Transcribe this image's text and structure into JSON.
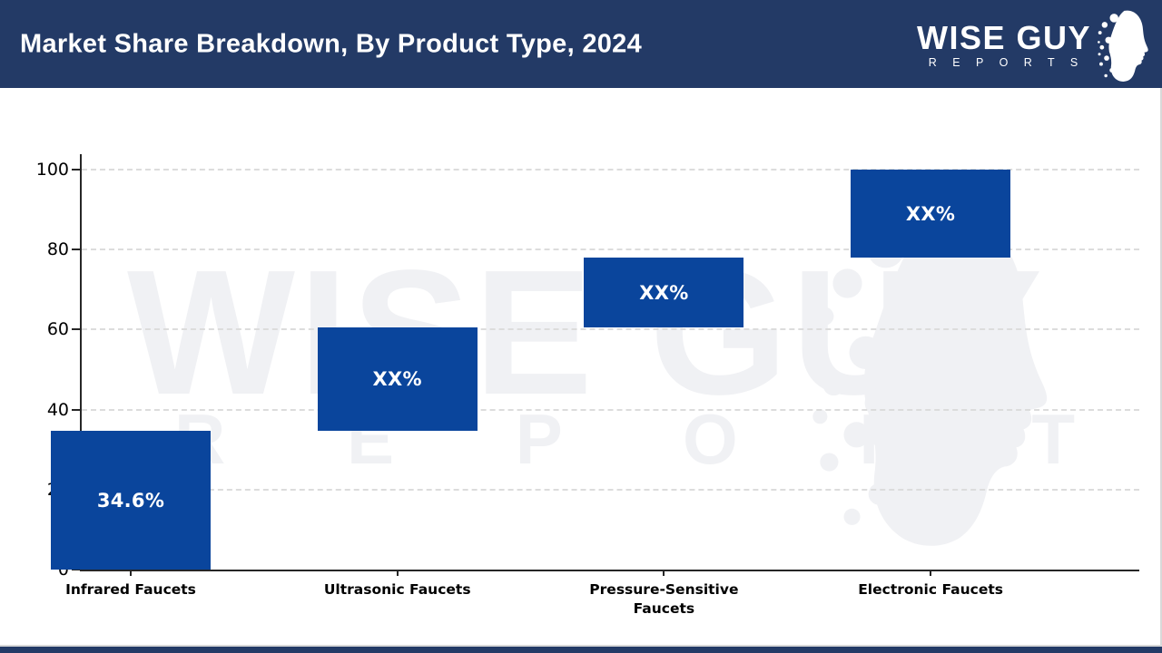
{
  "colors": {
    "header_bg": "#233a66",
    "footer_bg": "#233a66",
    "bar_blue": "#0a459c",
    "watermark_gray": "#f0f1f4",
    "gridline_gray": "#dcdcdc",
    "axis_black": "#262626"
  },
  "header": {
    "title": "Market Share Breakdown, By Product Type, 2024",
    "brand": {
      "line1": "WISE GUY",
      "line2": "R E P O R T S"
    }
  },
  "watermark": {
    "line1": "WISE GUY",
    "line2": "R E P O R T S"
  },
  "chart_data": {
    "type": "bar",
    "subtype": "waterfall-stacked",
    "title": "Market Share Breakdown, By Product Type, 2024",
    "xlabel": "",
    "ylabel": "",
    "grid": "horizontal-dashed",
    "legend": "none",
    "ylim": [
      0,
      100
    ],
    "yticks": [
      0,
      20,
      40,
      60,
      80,
      100
    ],
    "categories": [
      "Infrared Faucets",
      "Ultrasonic Faucets",
      "Pressure-Sensitive Faucets",
      "Electronic Faucets"
    ],
    "series": [
      {
        "name": "Infrared Faucets",
        "start": 0,
        "end": 34.6,
        "value": 34.6,
        "label": "34.6%"
      },
      {
        "name": "Ultrasonic Faucets",
        "start": 34.6,
        "end": 60.5,
        "value": 25.9,
        "label": "XX%"
      },
      {
        "name": "Pressure-Sensitive Faucets",
        "start": 60.5,
        "end": 78.0,
        "value": 17.5,
        "label": "XX%"
      },
      {
        "name": "Electronic Faucets",
        "start": 78.0,
        "end": 100.0,
        "value": 22.0,
        "label": "XX%"
      }
    ]
  }
}
